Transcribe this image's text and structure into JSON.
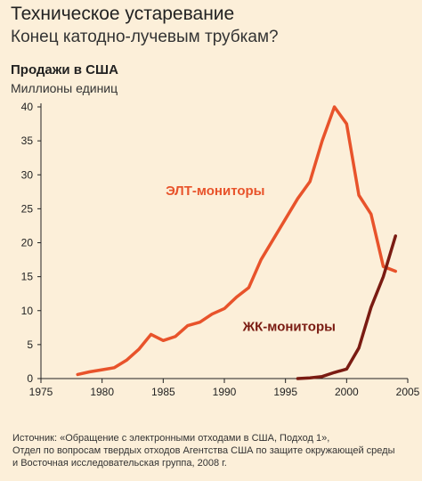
{
  "title": "Техническое устаревание",
  "subtitle": "Конец катодно-лучевым трубкам?",
  "chart_label": "Продажи в США",
  "units_label": "Миллионы единиц",
  "source_lines": [
    "Источник: «Обращение с электронными отходами в США, Подход 1»,",
    "Отдел по вопросам твердых отходов Агентства США по защите окружающей среды",
    "и Восточная исследовательская группа, 2008 г."
  ],
  "colors": {
    "crt": "#e8532b",
    "lcd": "#7a1b12",
    "background": "#fcefd9"
  },
  "chart_data": {
    "type": "line",
    "xlim": [
      1975,
      2005
    ],
    "ylim": [
      0,
      40
    ],
    "x_ticks": [
      1975,
      1980,
      1985,
      1990,
      1995,
      2000,
      2005
    ],
    "y_ticks": [
      0,
      5,
      10,
      15,
      20,
      25,
      30,
      35,
      40
    ],
    "grid": false,
    "series": [
      {
        "name": "ЭЛТ-мониторы",
        "color": "#e8532b",
        "x": [
          1978,
          1979,
          1980,
          1981,
          1982,
          1983,
          1984,
          1985,
          1986,
          1987,
          1988,
          1989,
          1990,
          1991,
          1992,
          1993,
          1994,
          1995,
          1996,
          1997,
          1998,
          1999,
          2000,
          2001,
          2002,
          2003,
          2004
        ],
        "y": [
          0.6,
          1.0,
          1.3,
          1.6,
          2.7,
          4.3,
          6.5,
          5.6,
          6.2,
          7.8,
          8.3,
          9.5,
          10.3,
          12.0,
          13.4,
          17.5,
          20.5,
          23.5,
          26.5,
          29.0,
          35.0,
          40.0,
          37.5,
          27.0,
          24.2,
          16.5,
          15.8
        ]
      },
      {
        "name": "ЖК-мониторы",
        "color": "#7a1b12",
        "x": [
          1996,
          1997,
          1998,
          1999,
          2000,
          2001,
          2002,
          2003,
          2004
        ],
        "y": [
          0.0,
          0.1,
          0.3,
          0.9,
          1.4,
          4.5,
          10.5,
          15.0,
          21.0
        ]
      }
    ]
  }
}
